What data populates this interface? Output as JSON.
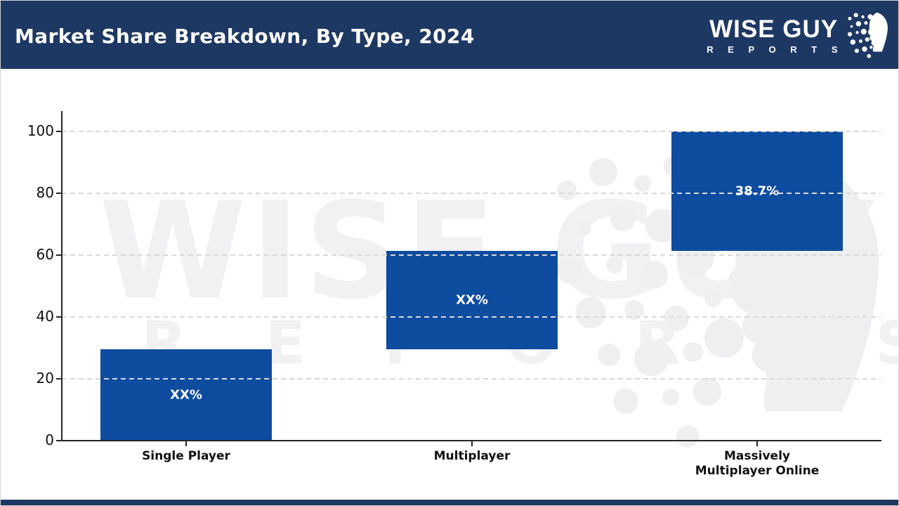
{
  "header": {
    "title": "Market Share Breakdown, By Type, 2024",
    "logo": {
      "line1": "WISE GUY",
      "line2": "R E P O R T S"
    }
  },
  "watermark": {
    "line1": "WISE GUY",
    "line2": "REPORTS"
  },
  "colors": {
    "header_bg": "#1e3864",
    "footer_bg": "#1e3864",
    "bar": "#0d4c9f",
    "bar_label": "#ffffff",
    "grid": "#d9d9d9",
    "axis": "#262626",
    "tick_label": "#111111",
    "watermark": "#f1f1f4"
  },
  "chart_data": {
    "type": "bar",
    "subtype": "stacked-waterfall-floating-bars",
    "title": "Market Share Breakdown, By Type, 2024",
    "categories": [
      "Single Player",
      "Multiplayer",
      "Massively Multiplayer Online"
    ],
    "category_lines": [
      [
        "Single Player"
      ],
      [
        "Multiplayer"
      ],
      [
        "Massively",
        "Multiplayer Online"
      ]
    ],
    "series": [
      {
        "name": "Single Player",
        "start": 0,
        "end": 29.5,
        "value_label": "XX%"
      },
      {
        "name": "Multiplayer",
        "start": 29.5,
        "end": 61.3,
        "value_label": "XX%"
      },
      {
        "name": "Massively Multiplayer Online",
        "start": 61.3,
        "end": 100,
        "value_label": "38.7%"
      }
    ],
    "yticks": [
      0,
      20,
      40,
      60,
      80,
      100
    ],
    "ylim": [
      0,
      105
    ],
    "xlabel": "",
    "ylabel": "",
    "grid": "horizontal-dashed",
    "legend": "none"
  }
}
